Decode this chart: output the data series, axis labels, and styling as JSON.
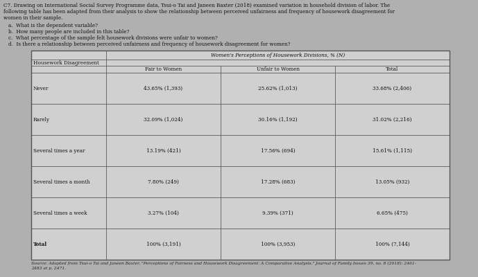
{
  "intro_text_lines": [
    "C7. Drawing on International Social Survey Programme data, Tsui-o Tai and Janeen Baxter (2018) examined variation in household division of labor. The",
    "following table has been adapted from their analysis to show the relationship between perceived unfairness and frequency of housework disagreement for",
    "women in their sample."
  ],
  "questions": [
    "a.  What is the dependent variable?",
    "b.  How many people are included in this table?",
    "c.  What percentage of the sample felt housework divisions were unfair to women?",
    "d.  Is there a relationship between perceived unfairness and frequency of housework disagreement for women?"
  ],
  "col_header_top": "Women's Perceptions of Housework Divisions, % (N)",
  "col_header_row1": "Housework Disagreement",
  "col_subheaders": [
    "Fair to Women",
    "Unfair to Women",
    "Total"
  ],
  "rows": [
    [
      "Never",
      "43.65% (1,393)",
      "25.62% (1,013)",
      "33.68% (2,406)"
    ],
    [
      "Rarely",
      "32.09% (1,024)",
      "30.16% (1,192)",
      "31.02% (2,216)"
    ],
    [
      "Several times a year",
      "13.19% (421)",
      "17.56% (694)",
      "15.61% (1,115)"
    ],
    [
      "Several times a month",
      "7.80% (249)",
      "17.28% (683)",
      "13.05% (932)"
    ],
    [
      "Several times a week",
      "3.27% (104)",
      "9.39% (371)",
      "6.65% (475)"
    ],
    [
      "Total",
      "100% (3,191)",
      "100% (3,953)",
      "100% (7,144)"
    ]
  ],
  "source_text_lines": [
    "Source: Adapted from Tsui-o Tai and Janeen Baxter, \"Perceptions of Fairness and Housework Disagreement: A Comparative Analysis,\" Journal of Family Issues 39, no. 8 (2018): 2461-",
    "2483 at p. 2471."
  ],
  "bg_color": "#b0b0b0",
  "table_cell_color": "#d0d0d0",
  "table_border_color": "#555555",
  "text_color": "#111111",
  "source_text_color": "#222222"
}
